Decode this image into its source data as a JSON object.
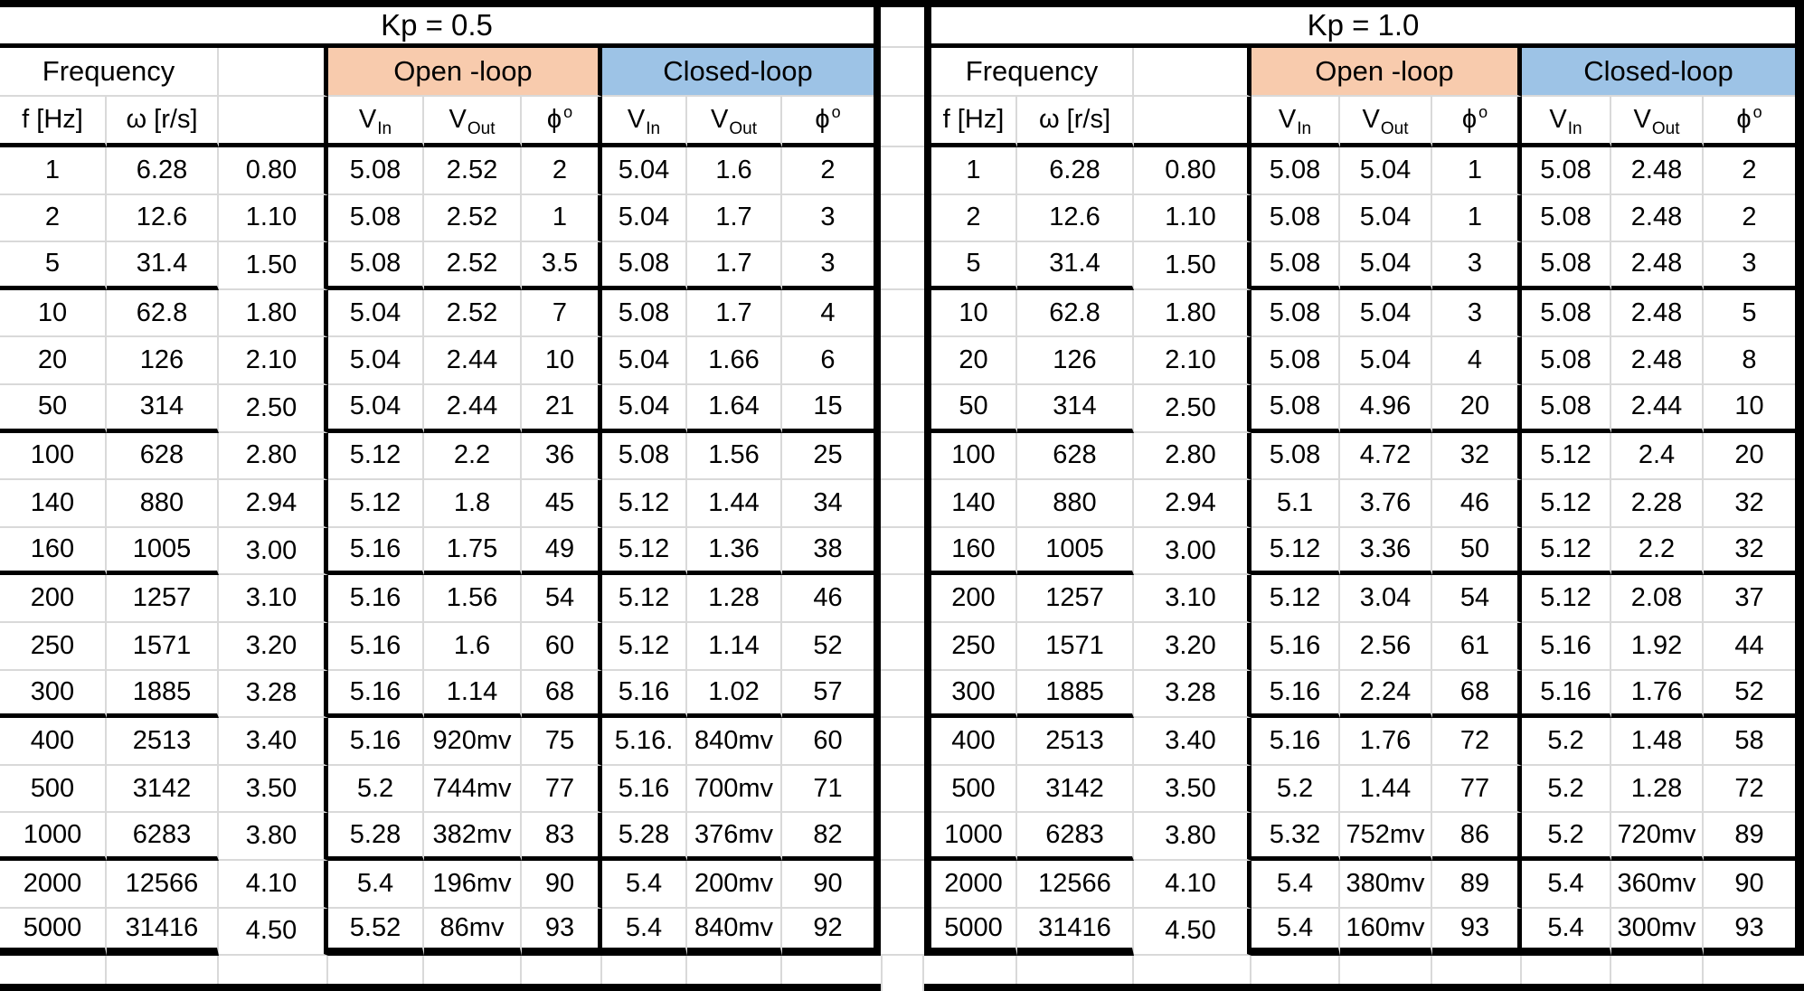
{
  "colors": {
    "open_loop_fill": "#F8CBAD",
    "closed_loop_fill": "#9DC3E6",
    "gridline": "#D9D9D9",
    "border": "#000000",
    "background": "#FFFFFF"
  },
  "tables": [
    {
      "title": "Kp = 0.5",
      "frequency_label": "Frequency",
      "open_loop_label": "Open -loop",
      "closed_loop_label": "Closed-loop",
      "columns": {
        "f": "f [Hz]",
        "omega": "ω [r/s]",
        "v": "V",
        "in": "In",
        "out": "Out",
        "phi": "ϕ",
        "deg": "o"
      },
      "rows": [
        [
          "1",
          "6.28",
          "0.80",
          "5.08",
          "2.52",
          "2",
          "5.04",
          "1.6",
          "2"
        ],
        [
          "2",
          "12.6",
          "1.10",
          "5.08",
          "2.52",
          "1",
          "5.04",
          "1.7",
          "3"
        ],
        [
          "5",
          "31.4",
          "1.50",
          "5.08",
          "2.52",
          "3.5",
          "5.08",
          "1.7",
          "3"
        ],
        [
          "10",
          "62.8",
          "1.80",
          "5.04",
          "2.52",
          "7",
          "5.08",
          "1.7",
          "4"
        ],
        [
          "20",
          "126",
          "2.10",
          "5.04",
          "2.44",
          "10",
          "5.04",
          "1.66",
          "6"
        ],
        [
          "50",
          "314",
          "2.50",
          "5.04",
          "2.44",
          "21",
          "5.04",
          "1.64",
          "15"
        ],
        [
          "100",
          "628",
          "2.80",
          "5.12",
          "2.2",
          "36",
          "5.08",
          "1.56",
          "25"
        ],
        [
          "140",
          "880",
          "2.94",
          "5.12",
          "1.8",
          "45",
          "5.12",
          "1.44",
          "34"
        ],
        [
          "160",
          "1005",
          "3.00",
          "5.16",
          "1.75",
          "49",
          "5.12",
          "1.36",
          "38"
        ],
        [
          "200",
          "1257",
          "3.10",
          "5.16",
          "1.56",
          "54",
          "5.12",
          "1.28",
          "46"
        ],
        [
          "250",
          "1571",
          "3.20",
          "5.16",
          "1.6",
          "60",
          "5.12",
          "1.14",
          "52"
        ],
        [
          "300",
          "1885",
          "3.28",
          "5.16",
          "1.14",
          "68",
          "5.16",
          "1.02",
          "57"
        ],
        [
          "400",
          "2513",
          "3.40",
          "5.16",
          "920mv",
          "75",
          "5.16.",
          "840mv",
          "60"
        ],
        [
          "500",
          "3142",
          "3.50",
          "5.2",
          "744mv",
          "77",
          "5.16",
          "700mv",
          "71"
        ],
        [
          "1000",
          "6283",
          "3.80",
          "5.28",
          "382mv",
          "83",
          "5.28",
          "376mv",
          "82"
        ],
        [
          "2000",
          "12566",
          "4.10",
          "5.4",
          "196mv",
          "90",
          "5.4",
          "200mv",
          "90"
        ],
        [
          "5000",
          "31416",
          "4.50",
          "5.52",
          "86mv",
          "93",
          "5.4",
          "840mv",
          "92"
        ]
      ]
    },
    {
      "title": "Kp = 1.0",
      "frequency_label": "Frequency",
      "open_loop_label": "Open -loop",
      "closed_loop_label": "Closed-loop",
      "columns": {
        "f": "f [Hz]",
        "omega": "ω [r/s]",
        "v": "V",
        "in": "In",
        "out": "Out",
        "phi": "ϕ",
        "deg": "o"
      },
      "rows": [
        [
          "1",
          "6.28",
          "0.80",
          "5.08",
          "5.04",
          "1",
          "5.08",
          "2.48",
          "2"
        ],
        [
          "2",
          "12.6",
          "1.10",
          "5.08",
          "5.04",
          "1",
          "5.08",
          "2.48",
          "2"
        ],
        [
          "5",
          "31.4",
          "1.50",
          "5.08",
          "5.04",
          "3",
          "5.08",
          "2.48",
          "3"
        ],
        [
          "10",
          "62.8",
          "1.80",
          "5.08",
          "5.04",
          "3",
          "5.08",
          "2.48",
          "5"
        ],
        [
          "20",
          "126",
          "2.10",
          "5.08",
          "5.04",
          "4",
          "5.08",
          "2.48",
          "8"
        ],
        [
          "50",
          "314",
          "2.50",
          "5.08",
          "4.96",
          "20",
          "5.08",
          "2.44",
          "10"
        ],
        [
          "100",
          "628",
          "2.80",
          "5.08",
          "4.72",
          "32",
          "5.12",
          "2.4",
          "20"
        ],
        [
          "140",
          "880",
          "2.94",
          "5.1",
          "3.76",
          "46",
          "5.12",
          "2.28",
          "32"
        ],
        [
          "160",
          "1005",
          "3.00",
          "5.12",
          "3.36",
          "50",
          "5.12",
          "2.2",
          "32"
        ],
        [
          "200",
          "1257",
          "3.10",
          "5.12",
          "3.04",
          "54",
          "5.12",
          "2.08",
          "37"
        ],
        [
          "250",
          "1571",
          "3.20",
          "5.16",
          "2.56",
          "61",
          "5.16",
          "1.92",
          "44"
        ],
        [
          "300",
          "1885",
          "3.28",
          "5.16",
          "2.24",
          "68",
          "5.16",
          "1.76",
          "52"
        ],
        [
          "400",
          "2513",
          "3.40",
          "5.16",
          "1.76",
          "72",
          "5.2",
          "1.48",
          "58"
        ],
        [
          "500",
          "3142",
          "3.50",
          "5.2",
          "1.44",
          "77",
          "5.2",
          "1.28",
          "72"
        ],
        [
          "1000",
          "6283",
          "3.80",
          "5.32",
          "752mv",
          "86",
          "5.2",
          "720mv",
          "89"
        ],
        [
          "2000",
          "12566",
          "4.10",
          "5.4",
          "380mv",
          "89",
          "5.4",
          "360mv",
          "90"
        ],
        [
          "5000",
          "31416",
          "4.50",
          "5.4",
          "160mv",
          "93",
          "5.4",
          "300mv",
          "93"
        ]
      ]
    }
  ]
}
